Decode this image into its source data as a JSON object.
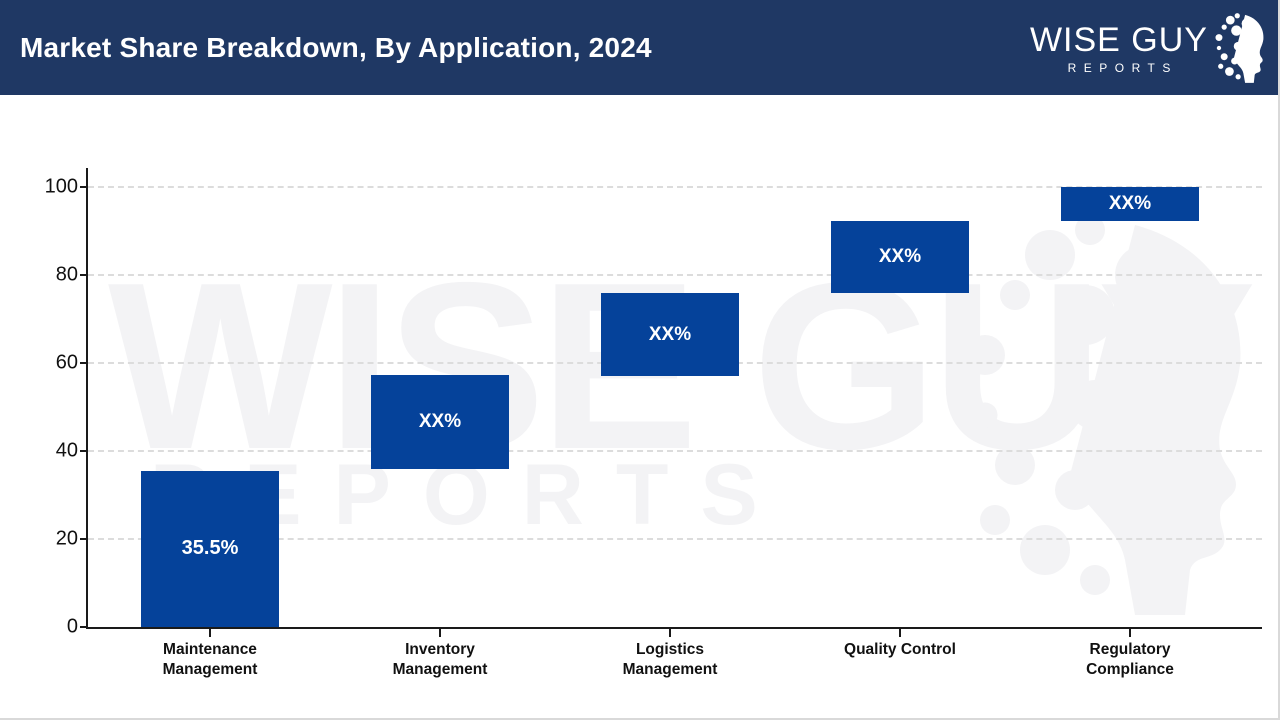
{
  "header": {
    "title": "Market Share Breakdown, By Application, 2024",
    "logo": {
      "line1": "WISE GUY",
      "line2": "REPORTS"
    }
  },
  "watermark": {
    "line1": "WISE GUY",
    "line2": "REPORTS"
  },
  "colors": {
    "header_bg": "#1f3864",
    "bar": "#05429a",
    "bar_label": "#ffffff",
    "gridline": "#dcdcdc",
    "axis": "#1a1a1a"
  },
  "chart_data": {
    "type": "bar",
    "subtype": "waterfall",
    "title": "Market Share Breakdown, By Application, 2024",
    "categories": [
      "Maintenance\nManagement",
      "Inventory\nManagement",
      "Logistics\nManagement",
      "Quality Control",
      "Regulatory\nCompliance"
    ],
    "segments": [
      {
        "category": "Maintenance Management",
        "start": 0,
        "end": 35.5,
        "label": "35.5%"
      },
      {
        "category": "Inventory Management",
        "start": 36,
        "end": 57.3,
        "label": "XX%"
      },
      {
        "category": "Logistics Management",
        "start": 57,
        "end": 75.9,
        "label": "XX%"
      },
      {
        "category": "Quality Control",
        "start": 75.9,
        "end": 92.3,
        "label": "XX%"
      },
      {
        "category": "Regulatory Compliance",
        "start": 92.3,
        "end": 100,
        "label": "XX%"
      }
    ],
    "yticks": [
      0,
      20,
      40,
      60,
      80,
      100
    ],
    "ylim": [
      0,
      105
    ],
    "grid": "dashed-horizontal",
    "legend": "none"
  }
}
